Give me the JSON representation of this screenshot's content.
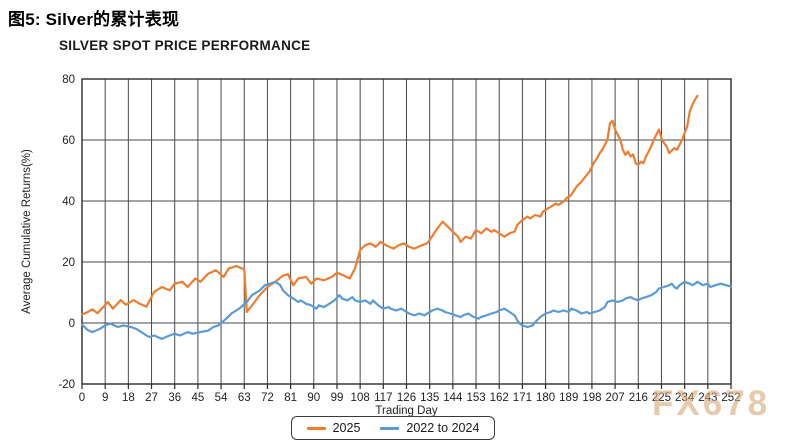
{
  "page": {
    "title": "图5: Silver的累计表现",
    "watermark": "FX678"
  },
  "chart_data": {
    "type": "line",
    "title": "SILVER SPOT PRICE PERFORMANCE",
    "xlabel": "Trading Day",
    "ylabel": "Average Cumulative Returns(%)",
    "xlim": [
      0,
      252
    ],
    "ylim": [
      -20,
      80
    ],
    "x_ticks": [
      0,
      9,
      18,
      27,
      36,
      45,
      54,
      63,
      72,
      81,
      90,
      99,
      108,
      117,
      126,
      135,
      144,
      153,
      162,
      171,
      180,
      189,
      198,
      207,
      216,
      225,
      234,
      243,
      252
    ],
    "y_ticks": [
      -20,
      0,
      20,
      40,
      60,
      80
    ],
    "grid": true,
    "grid_color": "#4a4a4a",
    "frame_color": "#2b2b2b",
    "legend_position": "bottom-center",
    "series": [
      {
        "name": "2025",
        "color": "#ED7D31",
        "points": [
          [
            0,
            2.8
          ],
          [
            2,
            3.5
          ],
          [
            4,
            4.5
          ],
          [
            6,
            3.2
          ],
          [
            8,
            5.0
          ],
          [
            10,
            6.9
          ],
          [
            12,
            4.7
          ],
          [
            15,
            7.5
          ],
          [
            17,
            6.0
          ],
          [
            20,
            7.5
          ],
          [
            22,
            6.5
          ],
          [
            25,
            5.3
          ],
          [
            28,
            10.2
          ],
          [
            31,
            11.8
          ],
          [
            34,
            10.7
          ],
          [
            36,
            12.9
          ],
          [
            39,
            13.5
          ],
          [
            41,
            11.8
          ],
          [
            44,
            14.6
          ],
          [
            46,
            13.5
          ],
          [
            49,
            16.2
          ],
          [
            52,
            17.3
          ],
          [
            55,
            15.1
          ],
          [
            57,
            17.9
          ],
          [
            60,
            18.7
          ],
          [
            62,
            17.9
          ],
          [
            63,
            17.5
          ],
          [
            64,
            3.6
          ],
          [
            67,
            6.9
          ],
          [
            69,
            9.1
          ],
          [
            72,
            11.8
          ],
          [
            75,
            13.5
          ],
          [
            78,
            15.5
          ],
          [
            80,
            16.0
          ],
          [
            82,
            12.4
          ],
          [
            84,
            14.6
          ],
          [
            87,
            15.1
          ],
          [
            89,
            12.9
          ],
          [
            91,
            14.6
          ],
          [
            94,
            14.0
          ],
          [
            97,
            15.1
          ],
          [
            99,
            16.5
          ],
          [
            101,
            15.8
          ],
          [
            104,
            14.6
          ],
          [
            106,
            17.9
          ],
          [
            108,
            23.9
          ],
          [
            110,
            25.5
          ],
          [
            112,
            26.1
          ],
          [
            114,
            25.0
          ],
          [
            116,
            26.6
          ],
          [
            118,
            25.5
          ],
          [
            121,
            24.4
          ],
          [
            123,
            25.5
          ],
          [
            125,
            26.1
          ],
          [
            127,
            25.0
          ],
          [
            129,
            24.4
          ],
          [
            132,
            25.5
          ],
          [
            134,
            26.1
          ],
          [
            136,
            28.5
          ],
          [
            138,
            31.0
          ],
          [
            140,
            33.2
          ],
          [
            142,
            31.6
          ],
          [
            144,
            29.9
          ],
          [
            146,
            28.3
          ],
          [
            147,
            26.6
          ],
          [
            149,
            28.3
          ],
          [
            151,
            27.7
          ],
          [
            153,
            30.5
          ],
          [
            155,
            29.4
          ],
          [
            157,
            31.0
          ],
          [
            159,
            29.9
          ],
          [
            160,
            30.5
          ],
          [
            162,
            29.4
          ],
          [
            164,
            28.3
          ],
          [
            166,
            29.4
          ],
          [
            168,
            30.0
          ],
          [
            169,
            32.1
          ],
          [
            171,
            33.8
          ],
          [
            173,
            34.9
          ],
          [
            174,
            34.3
          ],
          [
            176,
            35.4
          ],
          [
            178,
            34.9
          ],
          [
            179,
            36.5
          ],
          [
            181,
            37.6
          ],
          [
            182,
            38.1
          ],
          [
            184,
            39.2
          ],
          [
            185,
            38.7
          ],
          [
            187,
            39.8
          ],
          [
            188,
            40.9
          ],
          [
            189,
            41.4
          ],
          [
            190,
            42.0
          ],
          [
            192,
            44.7
          ],
          [
            194,
            46.4
          ],
          [
            195,
            47.5
          ],
          [
            197,
            49.6
          ],
          [
            199,
            52.9
          ],
          [
            200,
            54.0
          ],
          [
            201,
            55.7
          ],
          [
            202,
            56.8
          ],
          [
            203,
            58.4
          ],
          [
            204,
            60.1
          ],
          [
            205,
            65.5
          ],
          [
            206,
            66.3
          ],
          [
            207,
            63.4
          ],
          [
            208,
            61.7
          ],
          [
            209,
            60.1
          ],
          [
            210,
            56.8
          ],
          [
            211,
            55.1
          ],
          [
            212,
            56.2
          ],
          [
            213,
            54.6
          ],
          [
            214,
            55.3
          ],
          [
            215,
            52.4
          ],
          [
            216,
            51.8
          ],
          [
            217,
            52.9
          ],
          [
            218,
            52.4
          ],
          [
            219,
            54.6
          ],
          [
            220,
            56.2
          ],
          [
            221,
            57.9
          ],
          [
            222,
            60.1
          ],
          [
            224,
            63.4
          ],
          [
            225,
            60.6
          ],
          [
            226,
            59.0
          ],
          [
            227,
            57.9
          ],
          [
            228,
            55.7
          ],
          [
            230,
            57.3
          ],
          [
            231,
            56.8
          ],
          [
            232,
            58.4
          ],
          [
            233,
            60.1
          ],
          [
            234,
            62.3
          ],
          [
            235,
            64.5
          ],
          [
            236,
            69.4
          ],
          [
            237,
            71.6
          ],
          [
            238,
            73.2
          ],
          [
            239,
            74.5
          ]
        ]
      },
      {
        "name": "2022 to 2024",
        "color": "#5B9BD5",
        "points": [
          [
            0,
            -0.5
          ],
          [
            2,
            -2.2
          ],
          [
            4,
            -3.0
          ],
          [
            7,
            -1.9
          ],
          [
            9,
            -0.8
          ],
          [
            11,
            -0.2
          ],
          [
            14,
            -1.3
          ],
          [
            16,
            -0.8
          ],
          [
            19,
            -1.3
          ],
          [
            21,
            -1.9
          ],
          [
            23,
            -3.0
          ],
          [
            26,
            -4.6
          ],
          [
            28,
            -4.1
          ],
          [
            31,
            -5.2
          ],
          [
            34,
            -4.1
          ],
          [
            36,
            -3.5
          ],
          [
            38,
            -4.1
          ],
          [
            41,
            -3.0
          ],
          [
            43,
            -3.5
          ],
          [
            46,
            -3.0
          ],
          [
            49,
            -2.5
          ],
          [
            51,
            -1.3
          ],
          [
            53,
            -0.8
          ],
          [
            56,
            1.4
          ],
          [
            58,
            3.1
          ],
          [
            61,
            4.7
          ],
          [
            64,
            6.9
          ],
          [
            66,
            9.1
          ],
          [
            69,
            10.7
          ],
          [
            71,
            12.4
          ],
          [
            73,
            12.9
          ],
          [
            75,
            13.5
          ],
          [
            77,
            12.4
          ],
          [
            78,
            10.7
          ],
          [
            80,
            9.1
          ],
          [
            82,
            8.0
          ],
          [
            84,
            6.9
          ],
          [
            85,
            7.4
          ],
          [
            87,
            6.3
          ],
          [
            89,
            5.8
          ],
          [
            91,
            4.7
          ],
          [
            92,
            5.8
          ],
          [
            94,
            5.2
          ],
          [
            96,
            6.3
          ],
          [
            98,
            7.4
          ],
          [
            100,
            9.1
          ],
          [
            101,
            8.0
          ],
          [
            103,
            7.4
          ],
          [
            105,
            8.5
          ],
          [
            106,
            7.4
          ],
          [
            108,
            6.9
          ],
          [
            110,
            7.4
          ],
          [
            112,
            6.3
          ],
          [
            113,
            7.4
          ],
          [
            115,
            5.8
          ],
          [
            117,
            4.7
          ],
          [
            119,
            5.2
          ],
          [
            120,
            4.7
          ],
          [
            122,
            4.1
          ],
          [
            124,
            4.7
          ],
          [
            126,
            3.6
          ],
          [
            127,
            3.1
          ],
          [
            129,
            2.5
          ],
          [
            131,
            3.1
          ],
          [
            133,
            2.5
          ],
          [
            134,
            3.1
          ],
          [
            136,
            4.1
          ],
          [
            138,
            4.7
          ],
          [
            140,
            4.1
          ],
          [
            141,
            3.6
          ],
          [
            143,
            3.1
          ],
          [
            145,
            2.5
          ],
          [
            147,
            2.0
          ],
          [
            148,
            2.5
          ],
          [
            150,
            3.1
          ],
          [
            152,
            2.0
          ],
          [
            154,
            1.4
          ],
          [
            155,
            2.0
          ],
          [
            157,
            2.5
          ],
          [
            159,
            3.1
          ],
          [
            161,
            3.6
          ],
          [
            162,
            4.1
          ],
          [
            164,
            4.7
          ],
          [
            166,
            3.6
          ],
          [
            168,
            2.5
          ],
          [
            169,
            0.9
          ],
          [
            170,
            -0.2
          ],
          [
            171,
            -0.8
          ],
          [
            173,
            -1.3
          ],
          [
            175,
            -0.8
          ],
          [
            176,
            0.3
          ],
          [
            178,
            2.0
          ],
          [
            180,
            3.1
          ],
          [
            182,
            3.6
          ],
          [
            183,
            4.1
          ],
          [
            185,
            3.6
          ],
          [
            187,
            4.1
          ],
          [
            189,
            3.6
          ],
          [
            190,
            4.7
          ],
          [
            192,
            4.1
          ],
          [
            194,
            3.1
          ],
          [
            196,
            3.6
          ],
          [
            197,
            3.1
          ],
          [
            199,
            3.6
          ],
          [
            201,
            4.1
          ],
          [
            203,
            5.2
          ],
          [
            204,
            6.9
          ],
          [
            206,
            7.4
          ],
          [
            208,
            6.9
          ],
          [
            210,
            7.4
          ],
          [
            211,
            8.0
          ],
          [
            213,
            8.5
          ],
          [
            214,
            8.0
          ],
          [
            216,
            7.4
          ],
          [
            217,
            8.0
          ],
          [
            219,
            8.5
          ],
          [
            221,
            9.1
          ],
          [
            223,
            10.2
          ],
          [
            224,
            11.3
          ],
          [
            226,
            11.8
          ],
          [
            228,
            12.4
          ],
          [
            229,
            12.9
          ],
          [
            230,
            11.8
          ],
          [
            231,
            11.3
          ],
          [
            232,
            12.4
          ],
          [
            234,
            13.5
          ],
          [
            236,
            12.9
          ],
          [
            237,
            12.4
          ],
          [
            238,
            12.9
          ],
          [
            239,
            13.5
          ],
          [
            241,
            12.4
          ],
          [
            243,
            12.9
          ],
          [
            244,
            11.8
          ],
          [
            246,
            12.4
          ],
          [
            248,
            12.9
          ],
          [
            250,
            12.4
          ],
          [
            252,
            12.0
          ]
        ]
      }
    ]
  }
}
